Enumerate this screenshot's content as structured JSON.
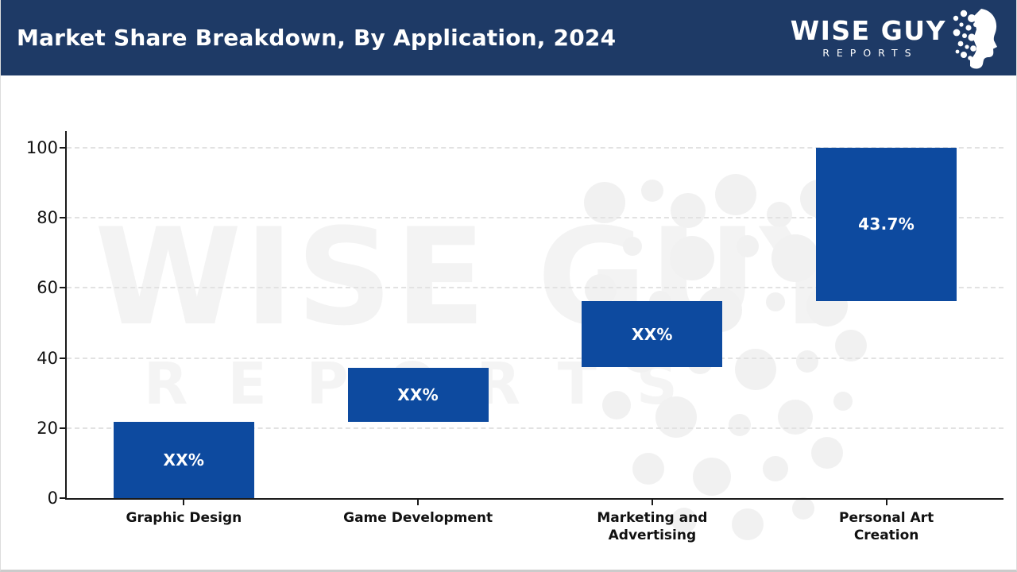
{
  "header": {
    "title": "Market Share Breakdown, By Application, 2024",
    "bg_color": "#1e3a66",
    "logo": {
      "line1": "WISE GUY",
      "line2": "REPORTS"
    }
  },
  "watermark": {
    "line1": "WISE GUY",
    "line2": "REPORTS"
  },
  "chart_data": {
    "type": "bar",
    "variant": "waterfall",
    "title": "Market Share Breakdown, By Application, 2024",
    "categories": [
      "Graphic Design",
      "Game Development",
      "Marketing and Advertising",
      "Personal Art Creation"
    ],
    "categories_display": [
      "Graphic Design",
      "Game Development",
      "Marketing and\nAdvertising",
      "Personal Art\nCreation"
    ],
    "segments": [
      {
        "start": 0,
        "end": 21.8
      },
      {
        "start": 21.8,
        "end": 37.3
      },
      {
        "start": 37.3,
        "end": 56.3
      },
      {
        "start": 56.3,
        "end": 100
      }
    ],
    "values": [
      21.8,
      15.5,
      19.0,
      43.7
    ],
    "labels": [
      "XX%",
      "XX%",
      "XX%",
      "43.7%"
    ],
    "yticks": [
      0,
      20,
      40,
      60,
      80,
      100
    ],
    "ylim": [
      0,
      105
    ],
    "xlabel": "",
    "ylabel": "",
    "grid": true,
    "legend": false,
    "bar_color": "#0d4a9f",
    "grid_color": "#e2e2e2",
    "axis_color": "#1a1a1a",
    "label_color": "#ffffff"
  }
}
